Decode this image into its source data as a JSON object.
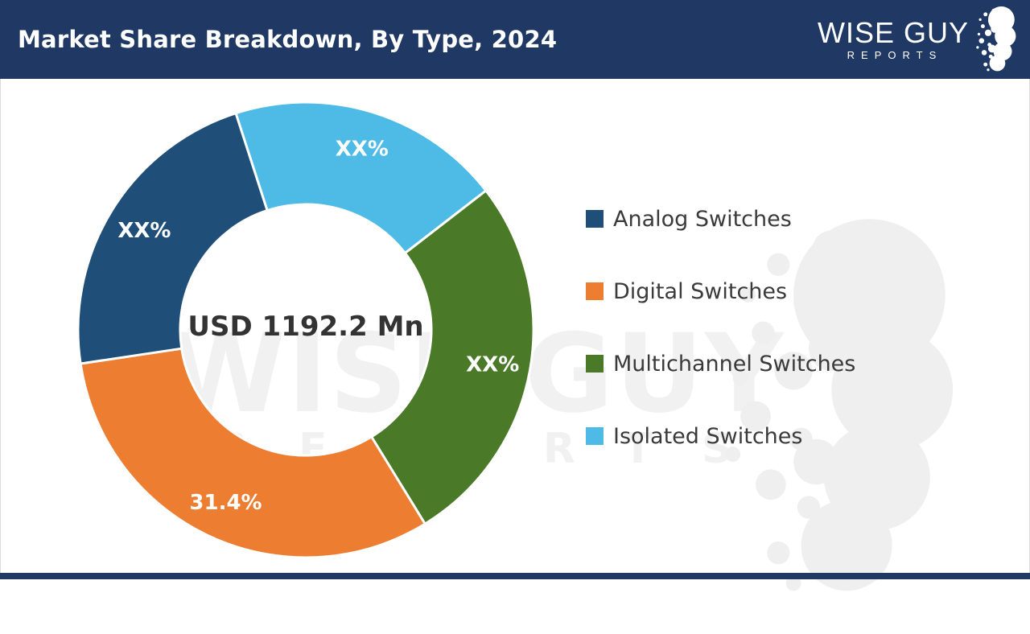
{
  "header": {
    "title": "Market Share Breakdown, By Type, 2024",
    "bg_color": "#1F3864",
    "logo": {
      "line1": "WISE GUY",
      "line2": "REPORTS"
    }
  },
  "watermark": {
    "line1": "WISE GUY",
    "line2": "REPORTS"
  },
  "chart_data": {
    "type": "pie",
    "subtype": "donut",
    "title": "Market Share Breakdown, By Type, 2024",
    "center_label": "USD 1192.2 Mn",
    "total_value": "USD 1192.2 Mn",
    "background": "#FFFFFF",
    "series": [
      {
        "name": "Analog Switches",
        "label": "XX%",
        "color": "#1F4E79",
        "sweep_percent": 22.4
      },
      {
        "name": "Digital Switches",
        "label": "31.4%",
        "color": "#ED7D31",
        "sweep_percent": 31.4
      },
      {
        "name": "Multichannel Switches",
        "label": "XX%",
        "color": "#4A7A28",
        "sweep_percent": 26.7
      },
      {
        "name": "Isolated Switches",
        "label": "XX%",
        "color": "#4DBBE6",
        "sweep_percent": 19.5
      }
    ],
    "layout": {
      "legend_position": "right",
      "start_angle_deg": -17.9,
      "draw_order": [
        3,
        2,
        1,
        0
      ],
      "center": [
        380,
        410
      ],
      "outer_radius": 283,
      "inner_radius": 156,
      "label_radius": 236,
      "separator_color": "#FFFFFF"
    }
  },
  "footer": {
    "bg_color": "#1F3864"
  }
}
